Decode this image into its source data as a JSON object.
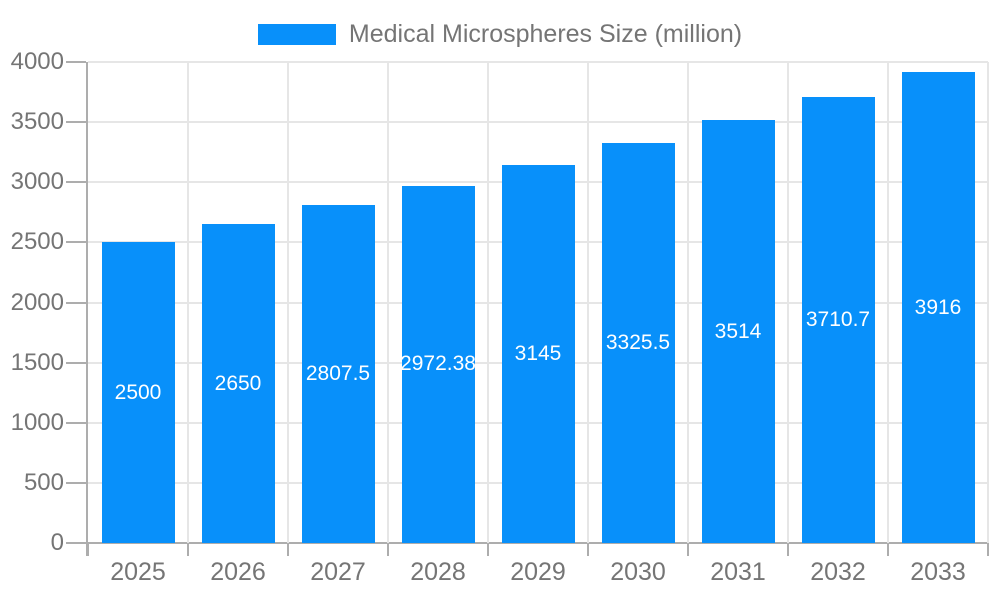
{
  "legend": {
    "label": "Medical Microspheres Size (million)"
  },
  "chart_data": {
    "type": "bar",
    "title": "Medical Microspheres Size (million)",
    "categories": [
      "2025",
      "2026",
      "2027",
      "2028",
      "2029",
      "2030",
      "2031",
      "2032",
      "2033"
    ],
    "values": [
      2500,
      2650,
      2807.5,
      2972.38,
      3145,
      3325.5,
      3514,
      3710.7,
      3916
    ],
    "data_labels": [
      "2500",
      "2650",
      "2807.5",
      "2972.38",
      "3145",
      "3325.5",
      "3514",
      "3710.7",
      "3916"
    ],
    "xlabel": "",
    "ylabel": "",
    "ylim": [
      0,
      4000
    ],
    "ytick_step": 500,
    "ytick_labels": [
      "0",
      "500",
      "1000",
      "1500",
      "2000",
      "2500",
      "3000",
      "3500",
      "4000"
    ],
    "grid": true,
    "legend_position": "top",
    "colors": {
      "bar": "#0890fa",
      "bar_label_text": "#ffffff",
      "axis_text": "#757575",
      "gridline": "#e6e6e6",
      "axis_line": "#adadad",
      "background": "#ffffff"
    }
  }
}
